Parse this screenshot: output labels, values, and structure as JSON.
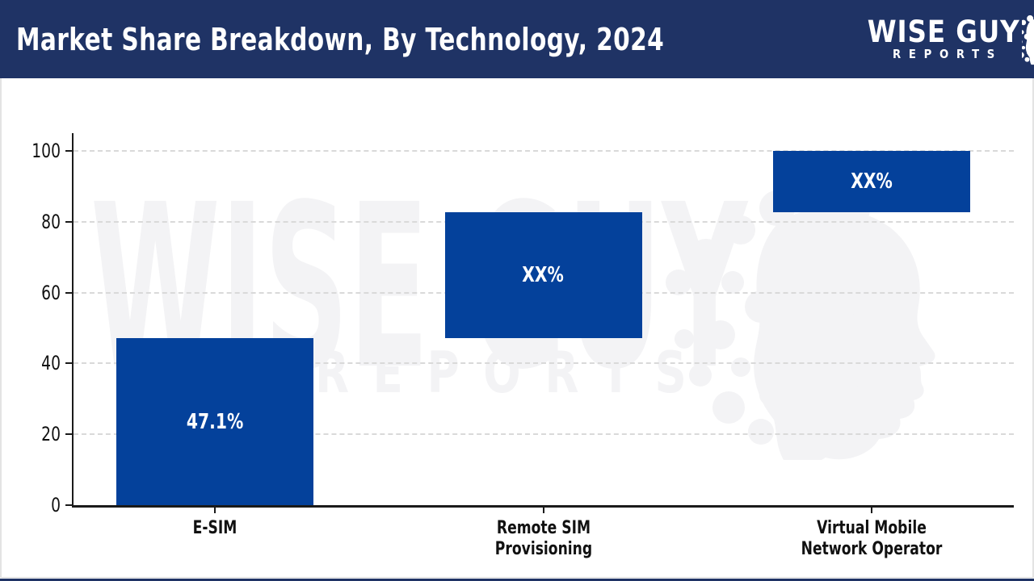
{
  "header": {
    "title": "Market Share Breakdown, By Technology, 2024",
    "logo": {
      "line1": "WISE GUY",
      "line2": "REPORTS"
    }
  },
  "watermark": {
    "line1": "WISE GUY",
    "line2": "REPORTS"
  },
  "colors": {
    "header_bg": "#1f3365",
    "bar": "#04419b",
    "bar_label": "#ffffff",
    "grid": "#d9d9d9",
    "axis": "#1a1a1a",
    "watermark": "#f3f3f5",
    "footer_strip": "#1f3365"
  },
  "chart_data": {
    "type": "bar",
    "variant": "waterfall",
    "title": "Market Share Breakdown, By Technology, 2024",
    "categories": [
      "E-SIM",
      "Remote SIM\nProvisioning",
      "Virtual Mobile\nNetwork Operator"
    ],
    "bars": [
      {
        "category": "E-SIM",
        "start": 0,
        "end": 47.1,
        "label": "47.1%"
      },
      {
        "category": "Remote SIM Provisioning",
        "start": 47.1,
        "end": 82.6,
        "label": "XX%"
      },
      {
        "category": "Virtual Mobile Network Operator",
        "start": 82.6,
        "end": 100,
        "label": "XX%"
      }
    ],
    "xlabel": "",
    "ylabel": "",
    "ylim": [
      0,
      105
    ],
    "yticks": [
      0,
      20,
      40,
      60,
      80,
      100
    ],
    "grid": {
      "axis": "y",
      "style": "dashed"
    },
    "legend": "none"
  }
}
